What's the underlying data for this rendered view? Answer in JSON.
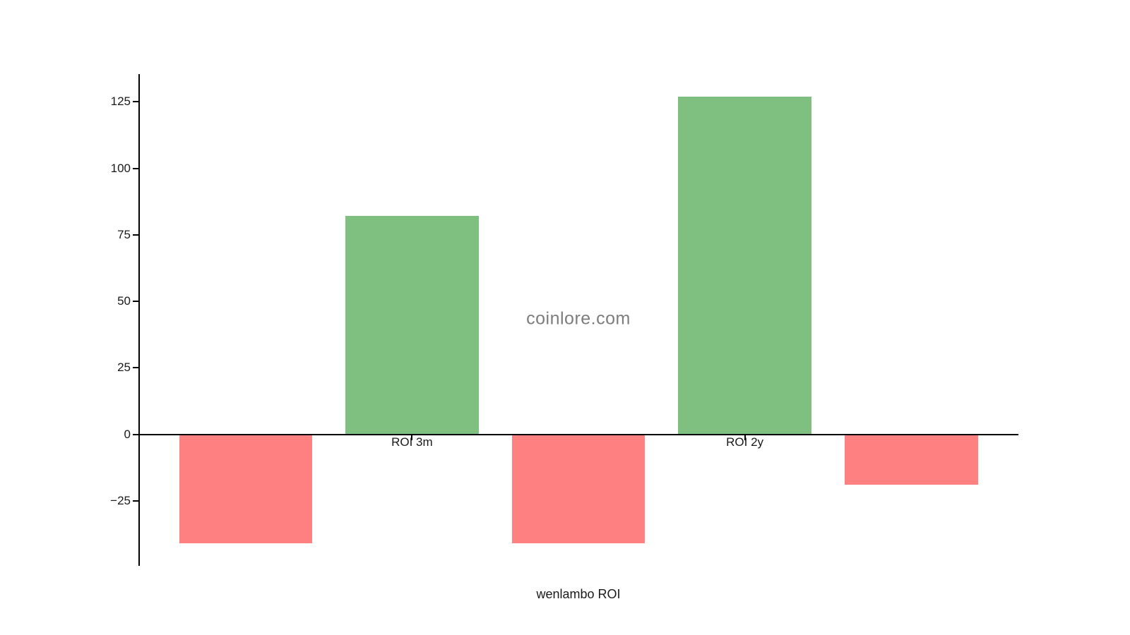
{
  "chart_data": {
    "type": "bar",
    "title": "",
    "xlabel": "wenlambo ROI",
    "ylabel": "",
    "watermark": "coinlore.com",
    "categories": [
      "",
      "ROI 3m",
      "",
      "ROI 2y",
      ""
    ],
    "values": [
      -41,
      82,
      -41,
      127,
      -19
    ],
    "bar_colors": [
      "#ff8080",
      "#7fbf7f",
      "#ff8080",
      "#7fbf7f",
      "#ff8080"
    ],
    "positive_color": "#7fbf7f",
    "negative_color": "#ff8080",
    "yticks": [
      125,
      100,
      75,
      50,
      25,
      0,
      -25
    ],
    "ylim": [
      -49.4,
      135.4
    ],
    "grid": false,
    "legend": "none",
    "axis_color": "#000000",
    "tick_text_color": "#1a1a1a",
    "watermark_color": "#7d7d7d"
  }
}
